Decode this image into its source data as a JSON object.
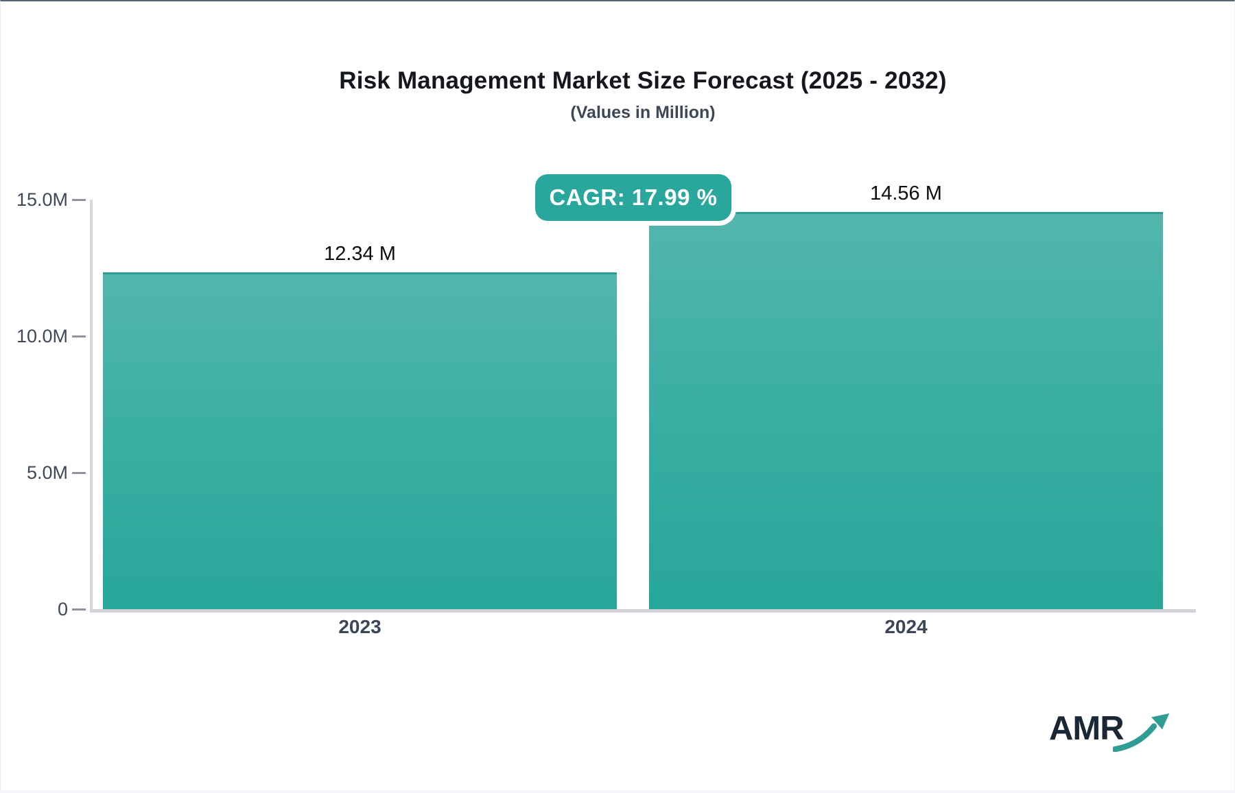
{
  "chart_data": {
    "type": "bar",
    "title": "Risk Management Market Size Forecast (2025 - 2032)",
    "subtitle": "(Values in Million)",
    "categories": [
      "2023",
      "2024"
    ],
    "values": [
      12.34,
      14.56
    ],
    "value_labels": [
      "12.34 M",
      "14.56 M"
    ],
    "unit": "Million",
    "annotation": {
      "label": "CAGR: 17.99 %"
    },
    "y_axis": {
      "ticks": [
        {
          "value": 15,
          "label": "15.0M"
        },
        {
          "value": 10,
          "label": "10.0M"
        },
        {
          "value": 5,
          "label": "5.0M"
        },
        {
          "value": 0,
          "label": "0"
        }
      ],
      "max": 15
    },
    "ylim": [
      0,
      15
    ],
    "grid": false,
    "legend": false,
    "colors": {
      "bar_gradient_top": "#53b6ad",
      "bar_gradient_bottom": "#28a69a",
      "bar_edge": "#2f9b92",
      "badge_background": "#2aa79c",
      "badge_text": "#ffffff",
      "axis_line": "#d2d4da",
      "tick_dash": "#8d939f",
      "tick_text": "#3f4857",
      "title_text": "#14171e"
    }
  },
  "logo": {
    "text": "AMR",
    "arrow_color": "#2f9d94"
  }
}
